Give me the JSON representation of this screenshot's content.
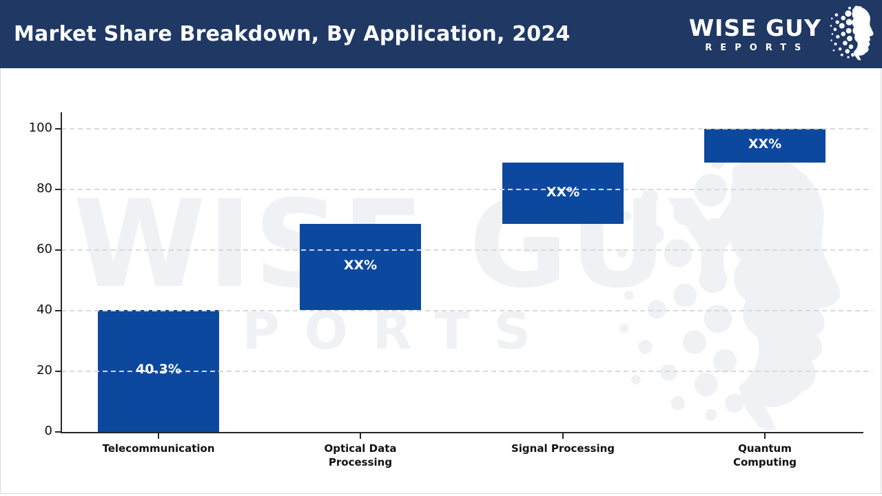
{
  "header": {
    "title": "Market Share Breakdown, By Application, 2024",
    "logo": {
      "line1": "WISE GUY",
      "line2": "REPORTS"
    }
  },
  "watermark": {
    "line1": "WISE GUY",
    "line2": "REPORTS"
  },
  "colors": {
    "header_bg": "#1f3864",
    "header_text": "#ffffff",
    "logo_text": "#ffffff",
    "bar_fill": "#0c489e",
    "bar_label_text": "#ffffff",
    "axis": "#262626",
    "tick_text": "#111111",
    "gridline": "#d9d9d9",
    "watermark": "#f0f1f4",
    "border": "#d8d8d8"
  },
  "chart_data": {
    "type": "bar",
    "subtype": "waterfall",
    "title": "Market Share Breakdown, By Application, 2024",
    "categories": [
      "Telecommunication",
      "Optical Data Processing",
      "Signal Processing",
      "Quantum Computing"
    ],
    "segments": [
      {
        "category": "Telecommunication",
        "start": 0,
        "end": 40.3,
        "value_label": "40.3%"
      },
      {
        "category": "Optical Data Processing",
        "start": 40.3,
        "end": 68.6,
        "value_label": "XX%"
      },
      {
        "category": "Signal Processing",
        "start": 68.6,
        "end": 88.9,
        "value_label": "XX%"
      },
      {
        "category": "Quantum Computing",
        "start": 88.9,
        "end": 100.0,
        "value_label": "XX%"
      }
    ],
    "ylim": [
      0,
      100
    ],
    "yticks": [
      0,
      20,
      40,
      60,
      80,
      100
    ],
    "unit": "%",
    "grid": "horizontal-dashed",
    "legend_position": "none",
    "xlabel": "",
    "ylabel": ""
  }
}
